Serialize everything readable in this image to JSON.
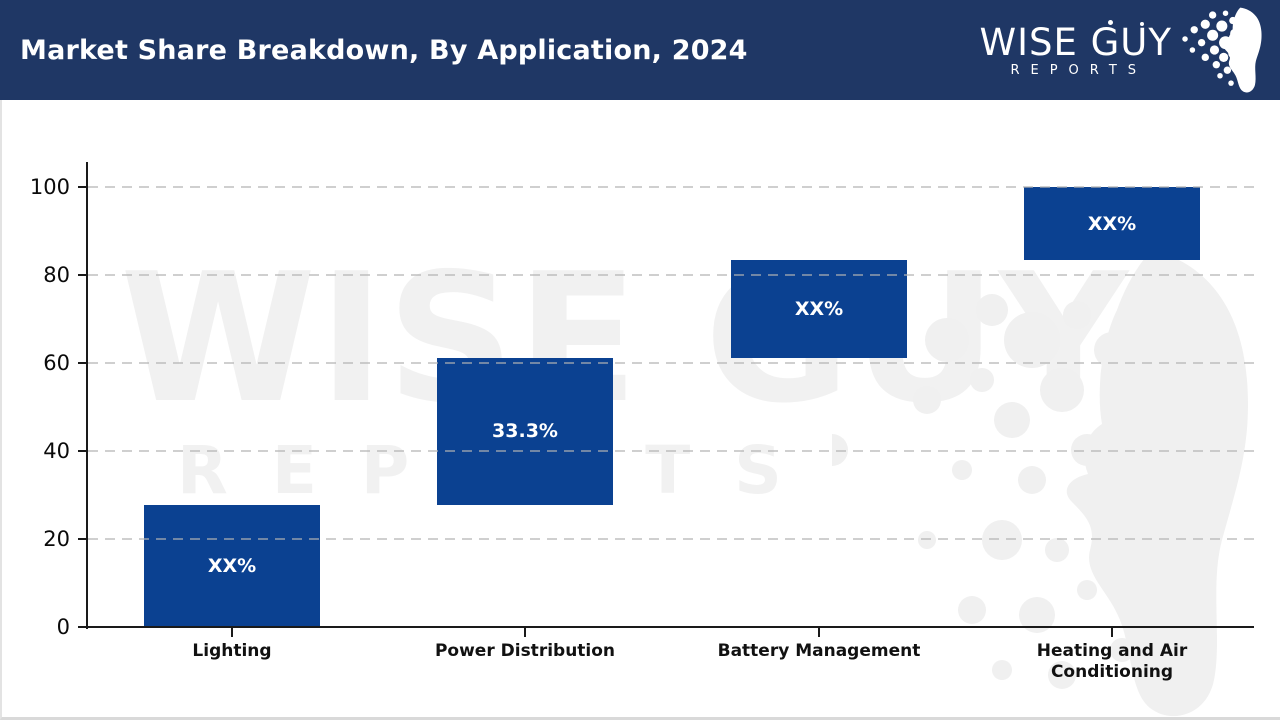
{
  "header": {
    "title": "Market Share Breakdown, By Application, 2024",
    "logo": {
      "wordmark": "WISE GUY",
      "subtext": "REPORTS"
    }
  },
  "watermark": {
    "wordmark": "WISE GUY",
    "subtext": "REPORTS"
  },
  "chart_data": {
    "type": "bar",
    "subtype": "waterfall-floating-bars",
    "title": "Market Share Breakdown, By Application, 2024",
    "categories": [
      "Lighting",
      "Power Distribution",
      "Battery Management",
      "Heating and Air Conditioning"
    ],
    "series": [
      {
        "name": "Market Share (%)",
        "segments": [
          {
            "category": "Lighting",
            "start": 0,
            "end": 27.8,
            "label": "XX%"
          },
          {
            "category": "Power Distribution",
            "start": 27.8,
            "end": 61.1,
            "label": "33.3%"
          },
          {
            "category": "Battery Management",
            "start": 61.1,
            "end": 83.3,
            "label": "XX%"
          },
          {
            "category": "Heating and Air Conditioning",
            "start": 83.3,
            "end": 100,
            "label": "XX%"
          }
        ]
      }
    ],
    "xlabel": "",
    "ylabel": "",
    "ylim": [
      0,
      100
    ],
    "yticks": [
      0,
      20,
      40,
      60,
      80,
      100
    ],
    "grid": true,
    "gridline_style": "dashed",
    "legend": "none",
    "bar_color": "#0b4191",
    "bar_label_color": "#ffffff",
    "header_color": "#1f3765",
    "watermark_color": "#f1f1f1"
  }
}
